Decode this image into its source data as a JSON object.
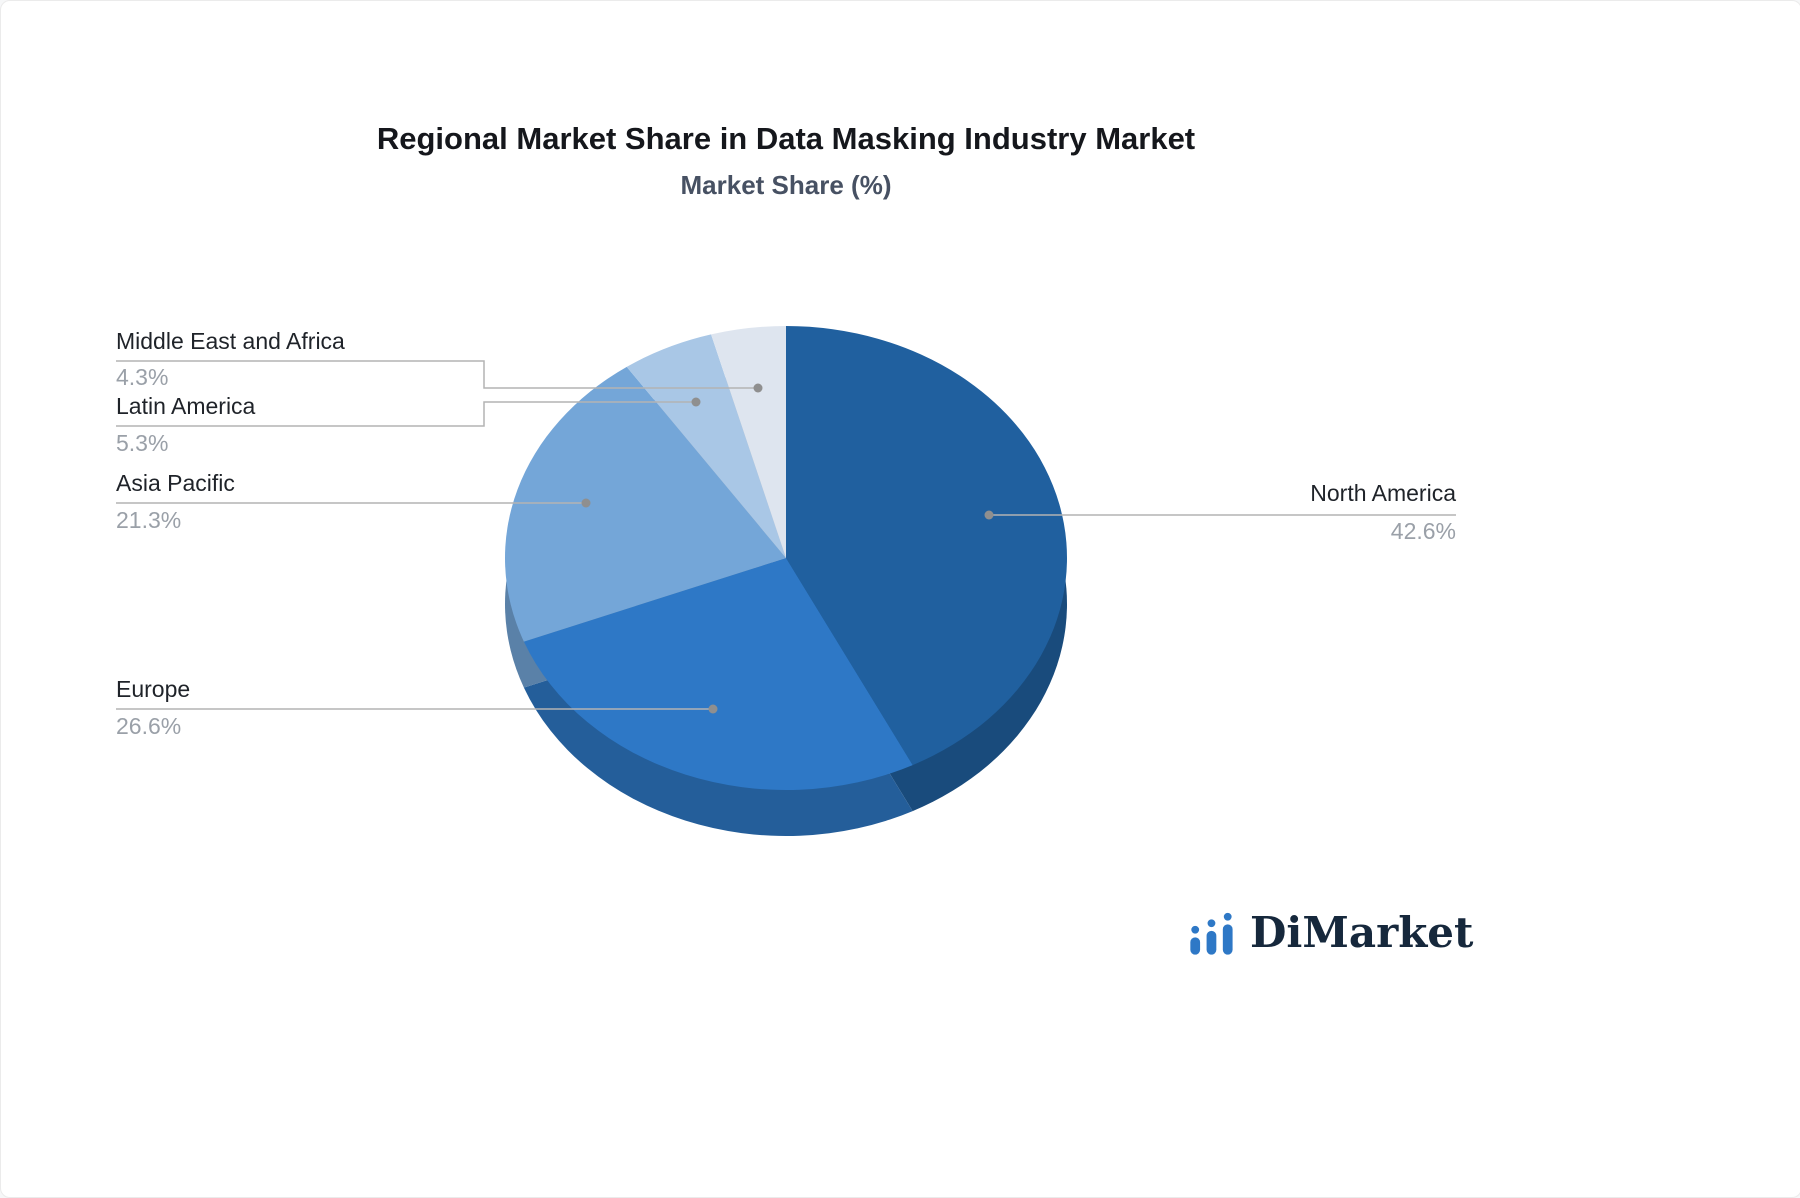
{
  "page": {
    "title": "Regional Market Share in Data Masking Industry Market",
    "subtitle": "Market Share (%)"
  },
  "chart_data": {
    "type": "pie",
    "title": "Regional Market Share in Data Masking Industry Market",
    "subtitle": "Market Share (%)",
    "unit": "%",
    "start_angle_deg": 0,
    "direction": "clockwise",
    "effect": "3d-depth",
    "legend_position": "callout-labels",
    "slices": [
      {
        "label": "North America",
        "value": 42.6,
        "display": "42.6%",
        "color": "#20609F"
      },
      {
        "label": "Europe",
        "value": 26.6,
        "display": "26.6%",
        "color": "#2E78C6"
      },
      {
        "label": "Asia Pacific",
        "value": 21.3,
        "display": "21.3%",
        "color": "#74A6D8"
      },
      {
        "label": "Latin America",
        "value": 5.3,
        "display": "5.3%",
        "color": "#A9C7E6"
      },
      {
        "label": "Middle East and Africa",
        "value": 4.3,
        "display": "4.3%",
        "color": "#DEE5EF"
      }
    ]
  },
  "branding": {
    "logo_text": "DiMarket",
    "logo_text_color": "#16283c",
    "icon_name": "bar-chart-icon",
    "icon_color": "#2E78C6"
  },
  "style_colors": {
    "label_text": "#1f2329",
    "value_text": "#9aa0a8",
    "leader_line": "#b3b3b3",
    "leader_dot": "#8f8f8f"
  }
}
